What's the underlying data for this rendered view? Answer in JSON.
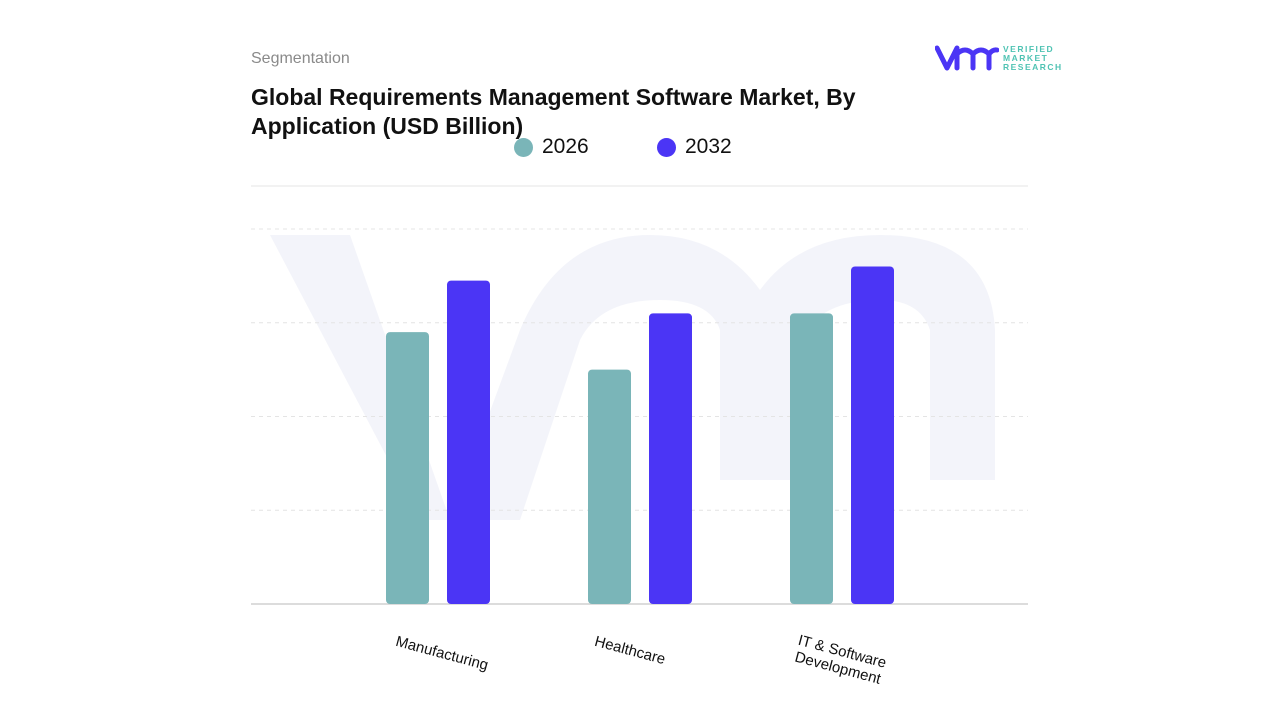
{
  "header": {
    "segmentation_label": "Segmentation",
    "title": "Global Requirements Management Software Market, By Application (USD Billion)"
  },
  "logo": {
    "text": "VERIFIED MARKET RESEARCH",
    "line1": "VERIFIED",
    "line2": "MARKET",
    "line3": "RESEARCH"
  },
  "colors": {
    "2026": "#7ab5b8",
    "2032": "#4b35f5"
  },
  "chart_data": {
    "type": "bar",
    "title": "Global Requirements Management Software Market, By Application (USD Billion)",
    "categories": [
      "Manufacturing",
      "Healthcare",
      "IT & Software Development"
    ],
    "series": [
      {
        "name": "2026",
        "color": "#7ab5b8",
        "values": [
          2.9,
          2.5,
          3.1
        ]
      },
      {
        "name": "2032",
        "color": "#4b35f5",
        "values": [
          3.45,
          3.1,
          3.6
        ]
      }
    ],
    "xlabel": "",
    "ylabel": "",
    "ylim": [
      0,
      4
    ],
    "y_tick_labels_shown": false,
    "grid": true,
    "legend": "top"
  }
}
